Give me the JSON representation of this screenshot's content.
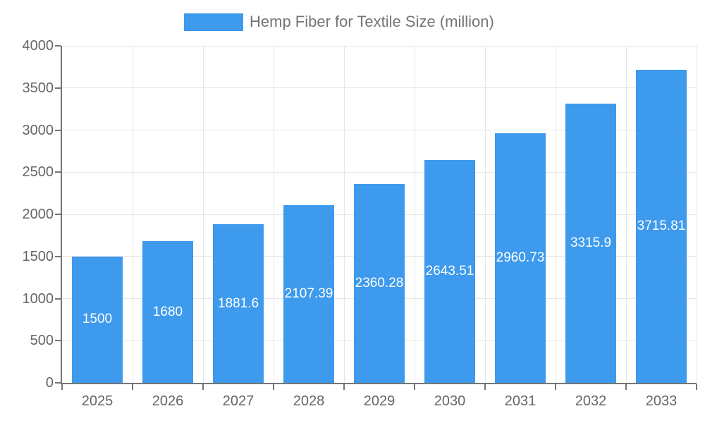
{
  "chart_data": {
    "type": "bar",
    "legend": "Hemp Fiber for Textile Size (million)",
    "legend_position": "top",
    "categories": [
      "2025",
      "2026",
      "2027",
      "2028",
      "2029",
      "2030",
      "2031",
      "2032",
      "2033"
    ],
    "series": [
      {
        "name": "Hemp Fiber for Textile Size (million)",
        "values": [
          1500,
          1680,
          1881.6,
          2107.39,
          2360.28,
          2643.51,
          2960.73,
          3315.9,
          3715.81
        ],
        "value_labels": [
          "1500",
          "1680",
          "1881.6",
          "2107.39",
          "2360.28",
          "2643.51",
          "2960.73",
          "3315.9",
          "3715.81"
        ]
      }
    ],
    "xlabel": "",
    "ylabel": "",
    "ylim": [
      0,
      4000
    ],
    "ytick_step": 500,
    "ytick_labels": [
      "0",
      "500",
      "1000",
      "1500",
      "2000",
      "2500",
      "3000",
      "3500",
      "4000"
    ],
    "grid": true,
    "colors": {
      "bar": "#3d9aec",
      "gridline": "#e6e6e6",
      "axis": "#757575",
      "tick_label": "#666666",
      "legend_text": "#757575",
      "value_label": "#ffffff",
      "background": "#ffffff"
    }
  }
}
